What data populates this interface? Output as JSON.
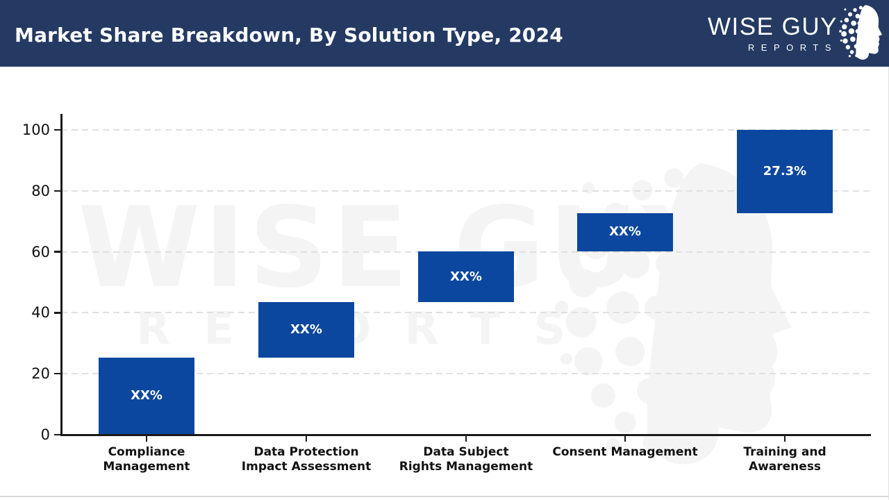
{
  "header": {
    "title": "Market Share Breakdown, By Solution Type, 2024",
    "logo": {
      "line1": "WISE GUY",
      "line2": "REPORTS"
    }
  },
  "watermark": {
    "line1": "WISE GUY",
    "line2": "REPORTS"
  },
  "chart_data": {
    "type": "bar",
    "subtype": "waterfall",
    "title": "Market Share Breakdown, By Solution Type, 2024",
    "xlabel": "",
    "ylabel": "",
    "ylim": [
      0,
      100
    ],
    "yticks": [
      0,
      20,
      40,
      60,
      80,
      100
    ],
    "grid": "horizontal-dashed",
    "legend": "none",
    "categories": [
      "Compliance\nManagement",
      "Data Protection\nImpact Assessment",
      "Data Subject\nRights Management",
      "Consent Management",
      "Training and\nAwareness"
    ],
    "segments": [
      {
        "category": "Compliance Management",
        "start": 0,
        "end": 25.3,
        "value_label": "XX%"
      },
      {
        "category": "Data Protection Impact Assessment",
        "start": 25.3,
        "end": 43.4,
        "value_label": "XX%"
      },
      {
        "category": "Data Subject Rights Management",
        "start": 43.4,
        "end": 60.2,
        "value_label": "XX%"
      },
      {
        "category": "Consent Management",
        "start": 60.2,
        "end": 72.7,
        "value_label": "XX%"
      },
      {
        "category": "Training and Awareness",
        "start": 72.7,
        "end": 100,
        "value_label": "27.3%"
      }
    ],
    "bar_color": "#0B479F",
    "bar_label_color": "#ffffff"
  },
  "colors": {
    "header_bg": "#243A63",
    "header_text": "#ffffff",
    "axis": "#1a1a1a",
    "grid": "#e0e0e0",
    "watermark": "#f4f4f4"
  }
}
